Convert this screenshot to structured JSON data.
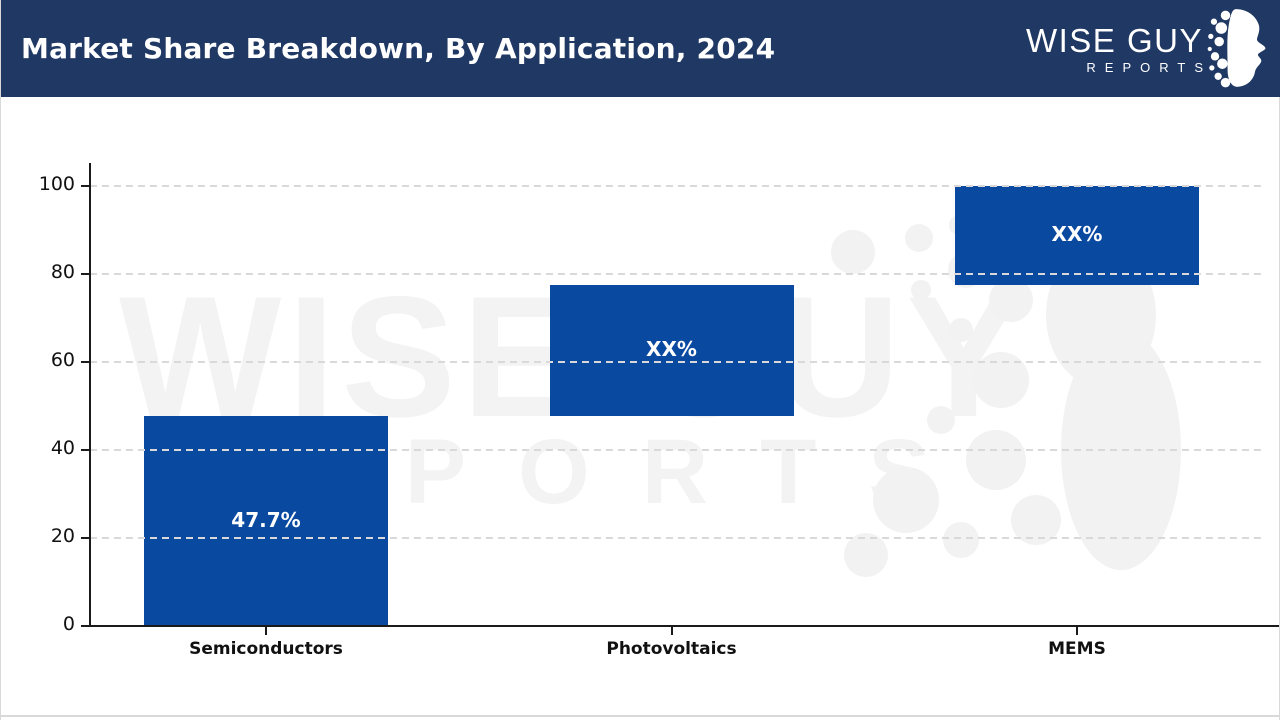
{
  "header": {
    "title": "Market Share Breakdown, By Application, 2024",
    "bg_color": "#203864",
    "logo": {
      "line1": "WISE GUY",
      "line2": "REPORTS",
      "face_icon": "dotted-head-profile-icon"
    }
  },
  "watermark": {
    "line1": "WISE GUY",
    "line2": "REPORTS"
  },
  "chart_data": {
    "type": "bar",
    "subtype": "waterfall-breakdown",
    "title": "Market Share Breakdown, By Application, 2024",
    "xlabel": "",
    "ylabel": "",
    "categories": [
      "Semiconductors",
      "Photovoltaics",
      "MEMS"
    ],
    "segments": [
      {
        "category": "Semiconductors",
        "label": "47.7%",
        "start": 0,
        "end": 47.7
      },
      {
        "category": "Photovoltaics",
        "label": "XX%",
        "start": 47.7,
        "end": 77.6
      },
      {
        "category": "MEMS",
        "label": "XX%",
        "start": 77.6,
        "end": 100
      }
    ],
    "yticks": [
      0,
      20,
      40,
      60,
      80,
      100
    ],
    "ylim": [
      0,
      105
    ],
    "grid": "horizontal-dashed",
    "legend": "none",
    "colors": {
      "bar": "#0a49a0",
      "bar_label": "#ffffff",
      "grid_line": "#d9d9d9",
      "axis": "#1a1a1a",
      "tick_label": "#111111",
      "category_label": "#111111"
    }
  }
}
